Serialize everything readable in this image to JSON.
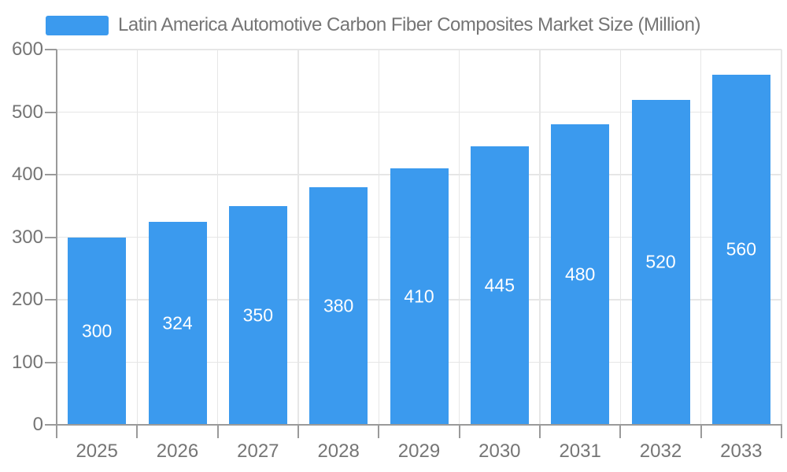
{
  "chart_data": {
    "type": "bar",
    "title": "Latin America Automotive Carbon Fiber Composites Market Size (Million)",
    "categories": [
      "2025",
      "2026",
      "2027",
      "2028",
      "2029",
      "2030",
      "2031",
      "2032",
      "2033"
    ],
    "values": [
      300,
      324,
      350,
      380,
      410,
      445,
      480,
      520,
      560
    ],
    "xlabel": "",
    "ylabel": "",
    "ylim": [
      0,
      600
    ],
    "yticks": [
      0,
      100,
      200,
      300,
      400,
      500,
      600
    ],
    "grid": true,
    "legend_position": "top-left",
    "value_labels_inside_bars": true,
    "bar_color": "#3B9AEE",
    "value_label_color": "#FFFFFF",
    "axis_color": "#9A9A9A",
    "gridline_color": "#E6E6E6",
    "label_color": "#757575",
    "background_color": "#FFFFFF"
  }
}
